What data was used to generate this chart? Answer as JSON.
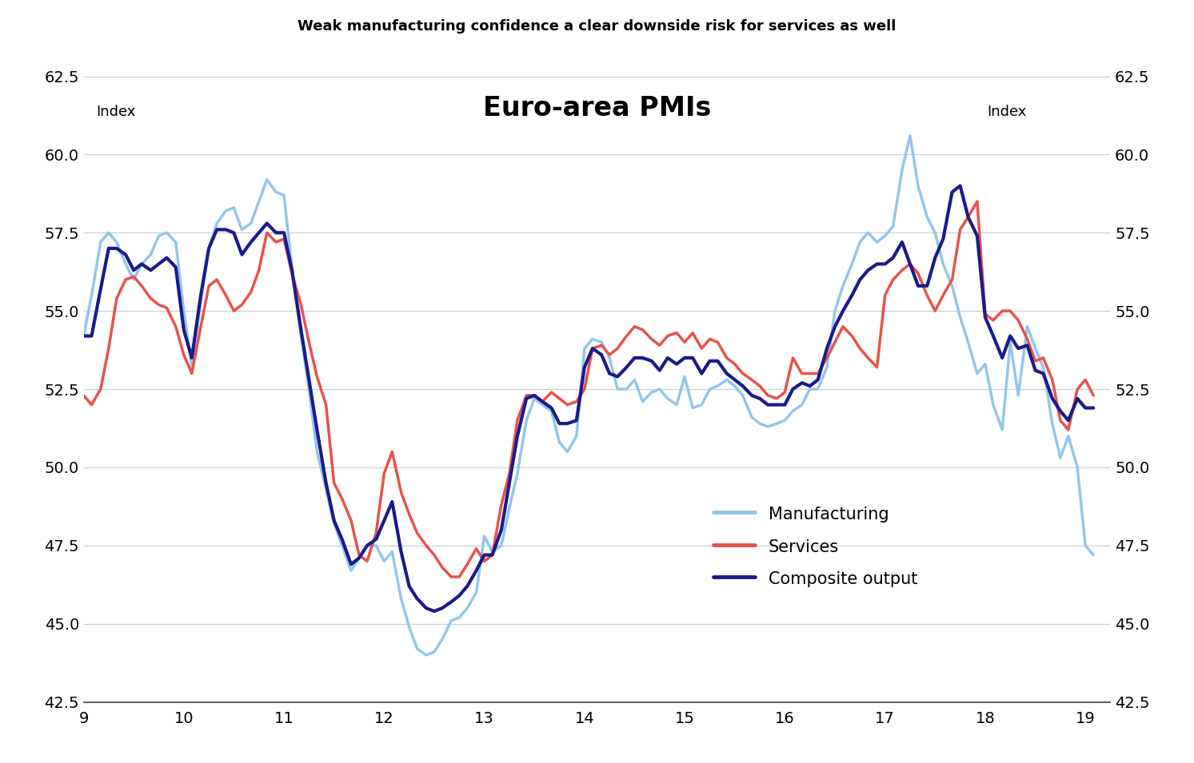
{
  "title": "Euro-area PMIs",
  "suptitle": "Weak manufacturing confidence a clear downside risk for services as well",
  "ylabel_left": "Index",
  "ylabel_right": "Index",
  "ylim": [
    42.5,
    62.5
  ],
  "yticks": [
    42.5,
    45.0,
    47.5,
    50.0,
    52.5,
    55.0,
    57.5,
    60.0,
    62.5
  ],
  "xlim": [
    9.0,
    19.25
  ],
  "xticks": [
    9,
    10,
    11,
    12,
    13,
    14,
    15,
    16,
    17,
    18,
    19
  ],
  "background_color": "#ffffff",
  "grid_color": "#c8d0d8",
  "services_color": "#e8524a",
  "manufacturing_color": "#92c6e8",
  "composite_color": "#1a1a8c",
  "legend_labels": [
    "Services",
    "Manufacturing",
    "Composite output"
  ],
  "x": [
    9.0,
    9.08,
    9.17,
    9.25,
    9.33,
    9.42,
    9.5,
    9.58,
    9.67,
    9.75,
    9.83,
    9.92,
    10.0,
    10.08,
    10.17,
    10.25,
    10.33,
    10.42,
    10.5,
    10.58,
    10.67,
    10.75,
    10.83,
    10.92,
    11.0,
    11.08,
    11.17,
    11.25,
    11.33,
    11.42,
    11.5,
    11.58,
    11.67,
    11.75,
    11.83,
    11.92,
    12.0,
    12.08,
    12.17,
    12.25,
    12.33,
    12.42,
    12.5,
    12.58,
    12.67,
    12.75,
    12.83,
    12.92,
    13.0,
    13.08,
    13.17,
    13.25,
    13.33,
    13.42,
    13.5,
    13.58,
    13.67,
    13.75,
    13.83,
    13.92,
    14.0,
    14.08,
    14.17,
    14.25,
    14.33,
    14.42,
    14.5,
    14.58,
    14.67,
    14.75,
    14.83,
    14.92,
    15.0,
    15.08,
    15.17,
    15.25,
    15.33,
    15.42,
    15.5,
    15.58,
    15.67,
    15.75,
    15.83,
    15.92,
    16.0,
    16.08,
    16.17,
    16.25,
    16.33,
    16.42,
    16.5,
    16.58,
    16.67,
    16.75,
    16.83,
    16.92,
    17.0,
    17.08,
    17.17,
    17.25,
    17.33,
    17.42,
    17.5,
    17.58,
    17.67,
    17.75,
    17.83,
    17.92,
    18.0,
    18.08,
    18.17,
    18.25,
    18.33,
    18.42,
    18.5,
    18.58,
    18.67,
    18.75,
    18.83,
    18.92,
    19.0,
    19.08
  ],
  "y_services": [
    52.3,
    52.0,
    52.5,
    53.8,
    55.4,
    56.0,
    56.1,
    55.8,
    55.4,
    55.2,
    55.1,
    54.5,
    53.6,
    53.0,
    54.5,
    55.8,
    56.0,
    55.5,
    55.0,
    55.2,
    55.6,
    56.3,
    57.5,
    57.2,
    57.3,
    56.2,
    55.2,
    54.0,
    52.9,
    52.0,
    49.5,
    49.0,
    48.3,
    47.2,
    47.0,
    47.9,
    49.8,
    50.5,
    49.2,
    48.5,
    47.9,
    47.5,
    47.2,
    46.8,
    46.5,
    46.5,
    46.9,
    47.4,
    47.0,
    47.2,
    48.8,
    49.8,
    51.5,
    52.3,
    52.3,
    52.1,
    52.4,
    52.2,
    52.0,
    52.1,
    52.5,
    53.8,
    53.9,
    53.6,
    53.8,
    54.2,
    54.5,
    54.4,
    54.1,
    53.9,
    54.2,
    54.3,
    54.0,
    54.3,
    53.8,
    54.1,
    54.0,
    53.5,
    53.3,
    53.0,
    52.8,
    52.6,
    52.3,
    52.2,
    52.4,
    53.5,
    53.0,
    53.0,
    53.0,
    53.5,
    54.0,
    54.5,
    54.2,
    53.8,
    53.5,
    53.2,
    55.5,
    56.0,
    56.3,
    56.5,
    56.2,
    55.5,
    55.0,
    55.5,
    56.0,
    57.6,
    58.0,
    58.5,
    54.9,
    54.7,
    55.0,
    55.0,
    54.7,
    54.1,
    53.4,
    53.5,
    52.8,
    51.5,
    51.2,
    52.5,
    52.8,
    52.3
  ],
  "y_manufacturing": [
    54.2,
    55.5,
    57.2,
    57.5,
    57.2,
    56.5,
    56.0,
    56.5,
    56.8,
    57.4,
    57.5,
    57.2,
    55.0,
    53.2,
    55.3,
    57.0,
    57.8,
    58.2,
    58.3,
    57.6,
    57.8,
    58.5,
    59.2,
    58.8,
    58.7,
    56.4,
    54.2,
    52.5,
    50.5,
    49.3,
    48.2,
    47.5,
    46.7,
    47.1,
    47.5,
    47.5,
    47.0,
    47.3,
    45.8,
    44.9,
    44.2,
    44.0,
    44.1,
    44.5,
    45.1,
    45.2,
    45.5,
    46.0,
    47.8,
    47.3,
    47.5,
    48.7,
    49.8,
    51.5,
    52.2,
    52.0,
    51.8,
    50.8,
    50.5,
    51.0,
    53.8,
    54.1,
    54.0,
    53.5,
    52.5,
    52.5,
    52.8,
    52.1,
    52.4,
    52.5,
    52.2,
    52.0,
    52.9,
    51.9,
    52.0,
    52.5,
    52.6,
    52.8,
    52.6,
    52.3,
    51.6,
    51.4,
    51.3,
    51.4,
    51.5,
    51.8,
    52.0,
    52.5,
    52.5,
    53.2,
    55.0,
    55.8,
    56.5,
    57.2,
    57.5,
    57.2,
    57.4,
    57.7,
    59.5,
    60.6,
    59.0,
    58.0,
    57.5,
    56.5,
    55.8,
    54.8,
    54.0,
    53.0,
    53.3,
    52.0,
    51.2,
    54.0,
    52.3,
    54.5,
    53.8,
    53.2,
    51.4,
    50.3,
    51.0,
    50.0,
    47.5,
    47.2
  ],
  "y_composite": [
    54.2,
    54.2,
    55.7,
    57.0,
    57.0,
    56.8,
    56.3,
    56.5,
    56.3,
    56.5,
    56.7,
    56.4,
    54.4,
    53.5,
    55.5,
    57.0,
    57.6,
    57.6,
    57.5,
    56.8,
    57.2,
    57.5,
    57.8,
    57.5,
    57.5,
    56.3,
    54.4,
    52.8,
    51.2,
    49.5,
    48.3,
    47.7,
    46.9,
    47.1,
    47.5,
    47.7,
    48.3,
    48.9,
    47.3,
    46.2,
    45.8,
    45.5,
    45.4,
    45.5,
    45.7,
    45.9,
    46.2,
    46.7,
    47.2,
    47.2,
    48.0,
    49.5,
    51.0,
    52.2,
    52.3,
    52.1,
    51.9,
    51.4,
    51.4,
    51.5,
    53.2,
    53.8,
    53.6,
    53.0,
    52.9,
    53.2,
    53.5,
    53.5,
    53.4,
    53.1,
    53.5,
    53.3,
    53.5,
    53.5,
    53.0,
    53.4,
    53.4,
    53.0,
    52.8,
    52.6,
    52.3,
    52.2,
    52.0,
    52.0,
    52.0,
    52.5,
    52.7,
    52.6,
    52.8,
    53.8,
    54.5,
    55.0,
    55.5,
    56.0,
    56.3,
    56.5,
    56.5,
    56.7,
    57.2,
    56.5,
    55.8,
    55.8,
    56.7,
    57.3,
    58.8,
    59.0,
    58.0,
    57.4,
    54.8,
    54.2,
    53.5,
    54.2,
    53.8,
    53.9,
    53.1,
    53.0,
    52.2,
    51.8,
    51.5,
    52.2,
    51.9,
    51.9
  ]
}
